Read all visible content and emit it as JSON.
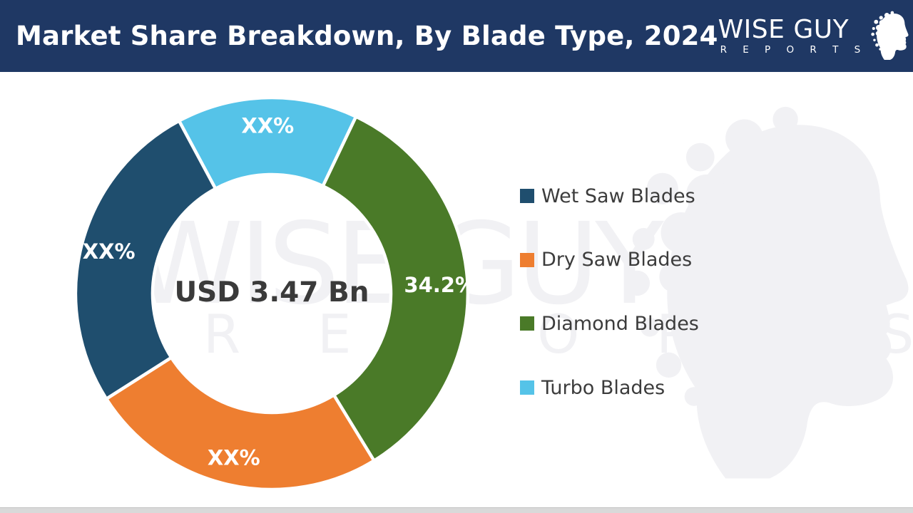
{
  "header": {
    "title": "Market Share Breakdown, By Blade Type, 2024",
    "logo": {
      "name": "WISE GUY",
      "subtitle": "R E P O R T S"
    }
  },
  "chart_data": {
    "type": "pie",
    "subtype": "donut",
    "title": "Market Share Breakdown, By Blade Type, 2024",
    "center_label": "USD 3.47 Bn",
    "legend_position": "right",
    "clockwise": true,
    "start_angle_from_top_deg": -28.2,
    "slices": [
      {
        "label": "Wet Saw Blades",
        "display_value": "XX%",
        "approx_value_pct": 26.2,
        "color": "#1F4E6E"
      },
      {
        "label": "Dry Saw Blades",
        "display_value": "XX%",
        "approx_value_pct": 24.7,
        "color": "#EE7E30"
      },
      {
        "label": "Diamond Blades",
        "display_value": "34.2%",
        "approx_value_pct": 34.2,
        "color": "#4A7A28"
      },
      {
        "label": "Turbo Blades",
        "display_value": "XX%",
        "approx_value_pct": 14.9,
        "color": "#55C3E8"
      }
    ]
  },
  "watermark": {
    "line1": "WISE GUY",
    "line2": "R E P O R T S"
  },
  "colors": {
    "header_bg": "#1F3864",
    "center_text": "#3A3A3A",
    "legend_text": "#3C3C3C",
    "footer_bar": "#D9D9D9",
    "watermark": "#F1F1F4"
  }
}
